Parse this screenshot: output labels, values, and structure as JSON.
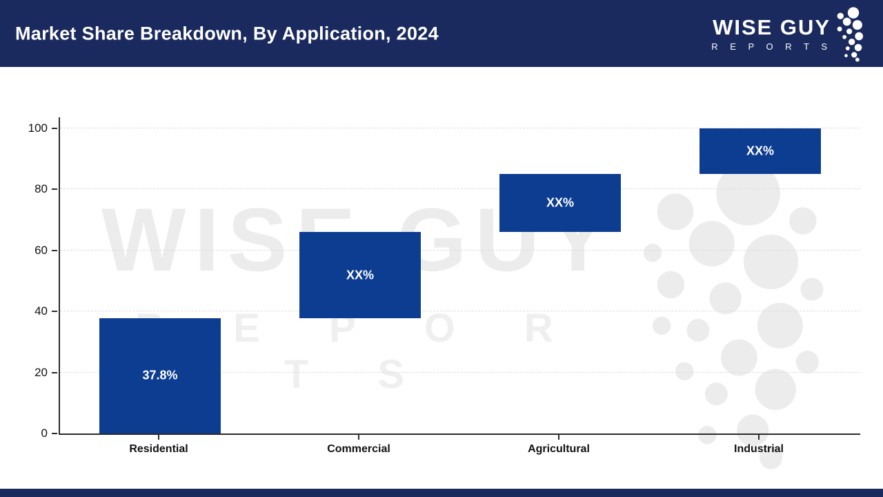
{
  "header": {
    "title": "Market Share Breakdown, By Application, 2024",
    "logo": {
      "line1": "WISE GUY",
      "line2": "R E P O R T S"
    }
  },
  "watermark": {
    "line1": "WISE GUY",
    "line2": "R E P O R T S"
  },
  "chart_data": {
    "type": "bar",
    "subtype": "waterfall-floating-bars",
    "title": "Market Share Breakdown, By Application, 2024",
    "categories": [
      "Residential",
      "Commercial",
      "Agricultural",
      "Industrial"
    ],
    "segments": [
      {
        "category": "Residential",
        "start": 0,
        "end": 37.8,
        "label": "37.8%"
      },
      {
        "category": "Commercial",
        "start": 37.8,
        "end": 66,
        "label": "XX%"
      },
      {
        "category": "Agricultural",
        "start": 66,
        "end": 85,
        "label": "XX%"
      },
      {
        "category": "Industrial",
        "start": 85,
        "end": 100,
        "label": "XX%"
      }
    ],
    "ylim": [
      0,
      100
    ],
    "yticks": [
      0,
      20,
      40,
      60,
      80,
      100
    ],
    "grid": true,
    "legend": "none",
    "bar_color": "#0d3d91",
    "label_color": "#ffffff"
  },
  "colors": {
    "header_bg": "#1a2a5e",
    "footer_bg": "#1a2a5e",
    "bar": "#0d3d91",
    "watermark": "#ececec",
    "axis": "#2b2b2b"
  }
}
